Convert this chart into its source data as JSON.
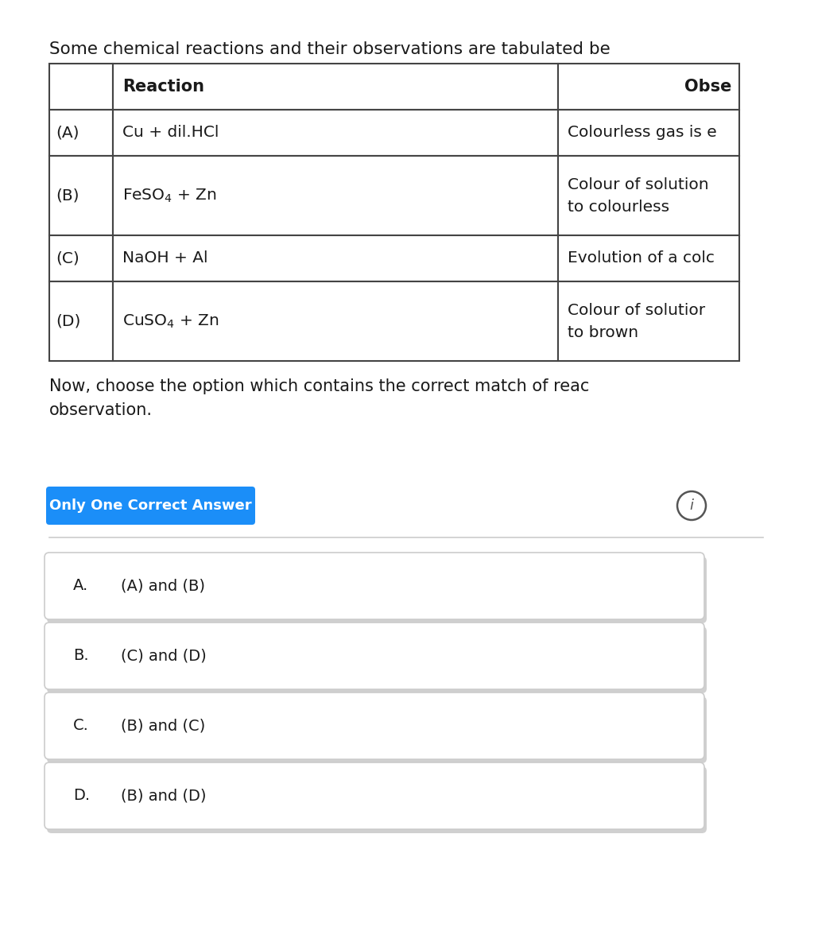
{
  "title": "Some chemical reactions and their observations are tabulated be",
  "col_header_reaction": "Reaction",
  "col_header_obs": "Obse",
  "rows": [
    {
      "label": "(A)",
      "reaction": "Cu + dil.HCl",
      "obs_lines": [
        "Colourless gas is e"
      ],
      "tall": false
    },
    {
      "label": "(B)",
      "reaction_parts": [
        [
          "FeSO",
          "4",
          " + Zn"
        ]
      ],
      "obs_lines": [
        "Colour of solution",
        "to colourless"
      ],
      "tall": true
    },
    {
      "label": "(C)",
      "reaction": "NaOH + Al",
      "obs_lines": [
        "Evolution of a colc"
      ],
      "tall": false
    },
    {
      "label": "(D)",
      "reaction_parts": [
        [
          "CuSO",
          "4",
          " + Zn"
        ]
      ],
      "obs_lines": [
        "Colour of solutior",
        "to brown"
      ],
      "tall": true
    }
  ],
  "question_text1": "Now, choose the option which contains the correct match of reac",
  "question_text2": "observation.",
  "badge_text": "Only One Correct Answer",
  "badge_color": "#1B8EF8",
  "badge_text_color": "#ffffff",
  "options": [
    {
      "label": "A.",
      "text": "(A) and (B)"
    },
    {
      "label": "B.",
      "text": "(C) and (D)"
    },
    {
      "label": "C.",
      "text": "(B) and (C)"
    },
    {
      "label": "D.",
      "text": "(B) and (D)"
    }
  ],
  "bg_color": "#ffffff",
  "text_color": "#1a1a1a",
  "table_border_color": "#444444",
  "option_border_color": "#cccccc",
  "option_shadow_color": "#d0d0d0",
  "option_bg_color": "#ffffff",
  "title_fontsize": 15.5,
  "header_fontsize": 15,
  "cell_fontsize": 14.5,
  "question_fontsize": 15,
  "badge_fontsize": 13,
  "option_fontsize": 14
}
